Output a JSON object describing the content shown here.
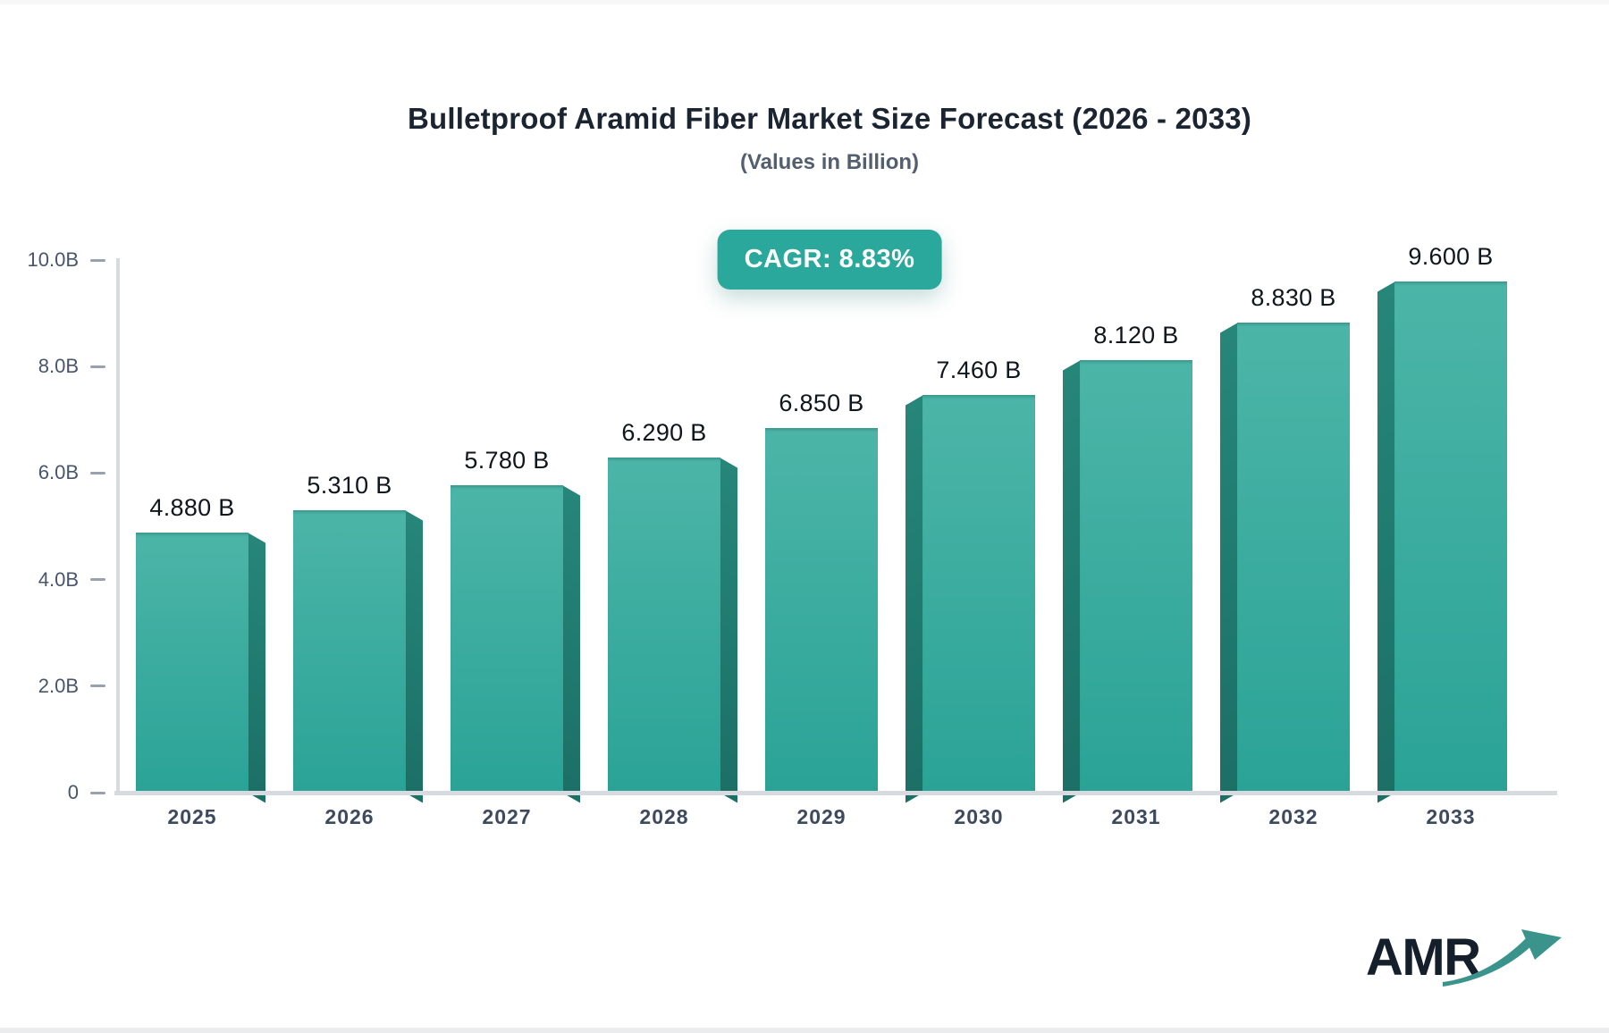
{
  "header": {
    "title": "Bulletproof Aramid Fiber Market Size Forecast (2026 - 2033)",
    "subtitle": "(Values in Billion)",
    "cagr_badge": "CAGR: 8.83%"
  },
  "branding": {
    "logo_text": "AMR",
    "logo_arrow_icon": "growth-arrow-icon"
  },
  "colors": {
    "bar_face_top": "#4cb5a8",
    "bar_face_bottom": "#2aa396",
    "bar_side_top": "#268679",
    "bar_side_bottom": "#1c6f66",
    "badge_bg": "#2aa89c",
    "title_text": "#1b2431",
    "subtitle_text": "#535f6e",
    "axis_line": "#d7dade",
    "tick_dash": "#98a1ad",
    "y_label_text": "#47566b",
    "x_label_text": "#3d4a5e",
    "value_label_text": "#10161d",
    "logo_text": "#141f2b",
    "logo_arrow": "#3a948b"
  },
  "chart_data": {
    "type": "bar",
    "title": "Bulletproof Aramid Fiber Market Size Forecast (2026 - 2033)",
    "subtitle": "(Values in Billion)",
    "cagr_percent": 8.83,
    "unit": "Billion USD",
    "categories": [
      "2025",
      "2026",
      "2027",
      "2028",
      "2029",
      "2030",
      "2031",
      "2032",
      "2033"
    ],
    "values": [
      4.88,
      5.31,
      5.78,
      6.29,
      6.85,
      7.46,
      8.12,
      8.83,
      9.6
    ],
    "value_labels": [
      "4.880 B",
      "5.310 B",
      "5.780 B",
      "6.290 B",
      "6.850 B",
      "7.460 B",
      "8.120 B",
      "8.830 B",
      "9.600 B"
    ],
    "y_ticks": [
      "10.0B",
      "8.0B",
      "6.0B",
      "4.0B",
      "2.0B",
      "0"
    ],
    "ylim": [
      0,
      10
    ],
    "xlabel": "",
    "ylabel": "",
    "grid": "off",
    "legend": "none",
    "style": "3d-perspective-bars, depth toward center vanishing point"
  }
}
